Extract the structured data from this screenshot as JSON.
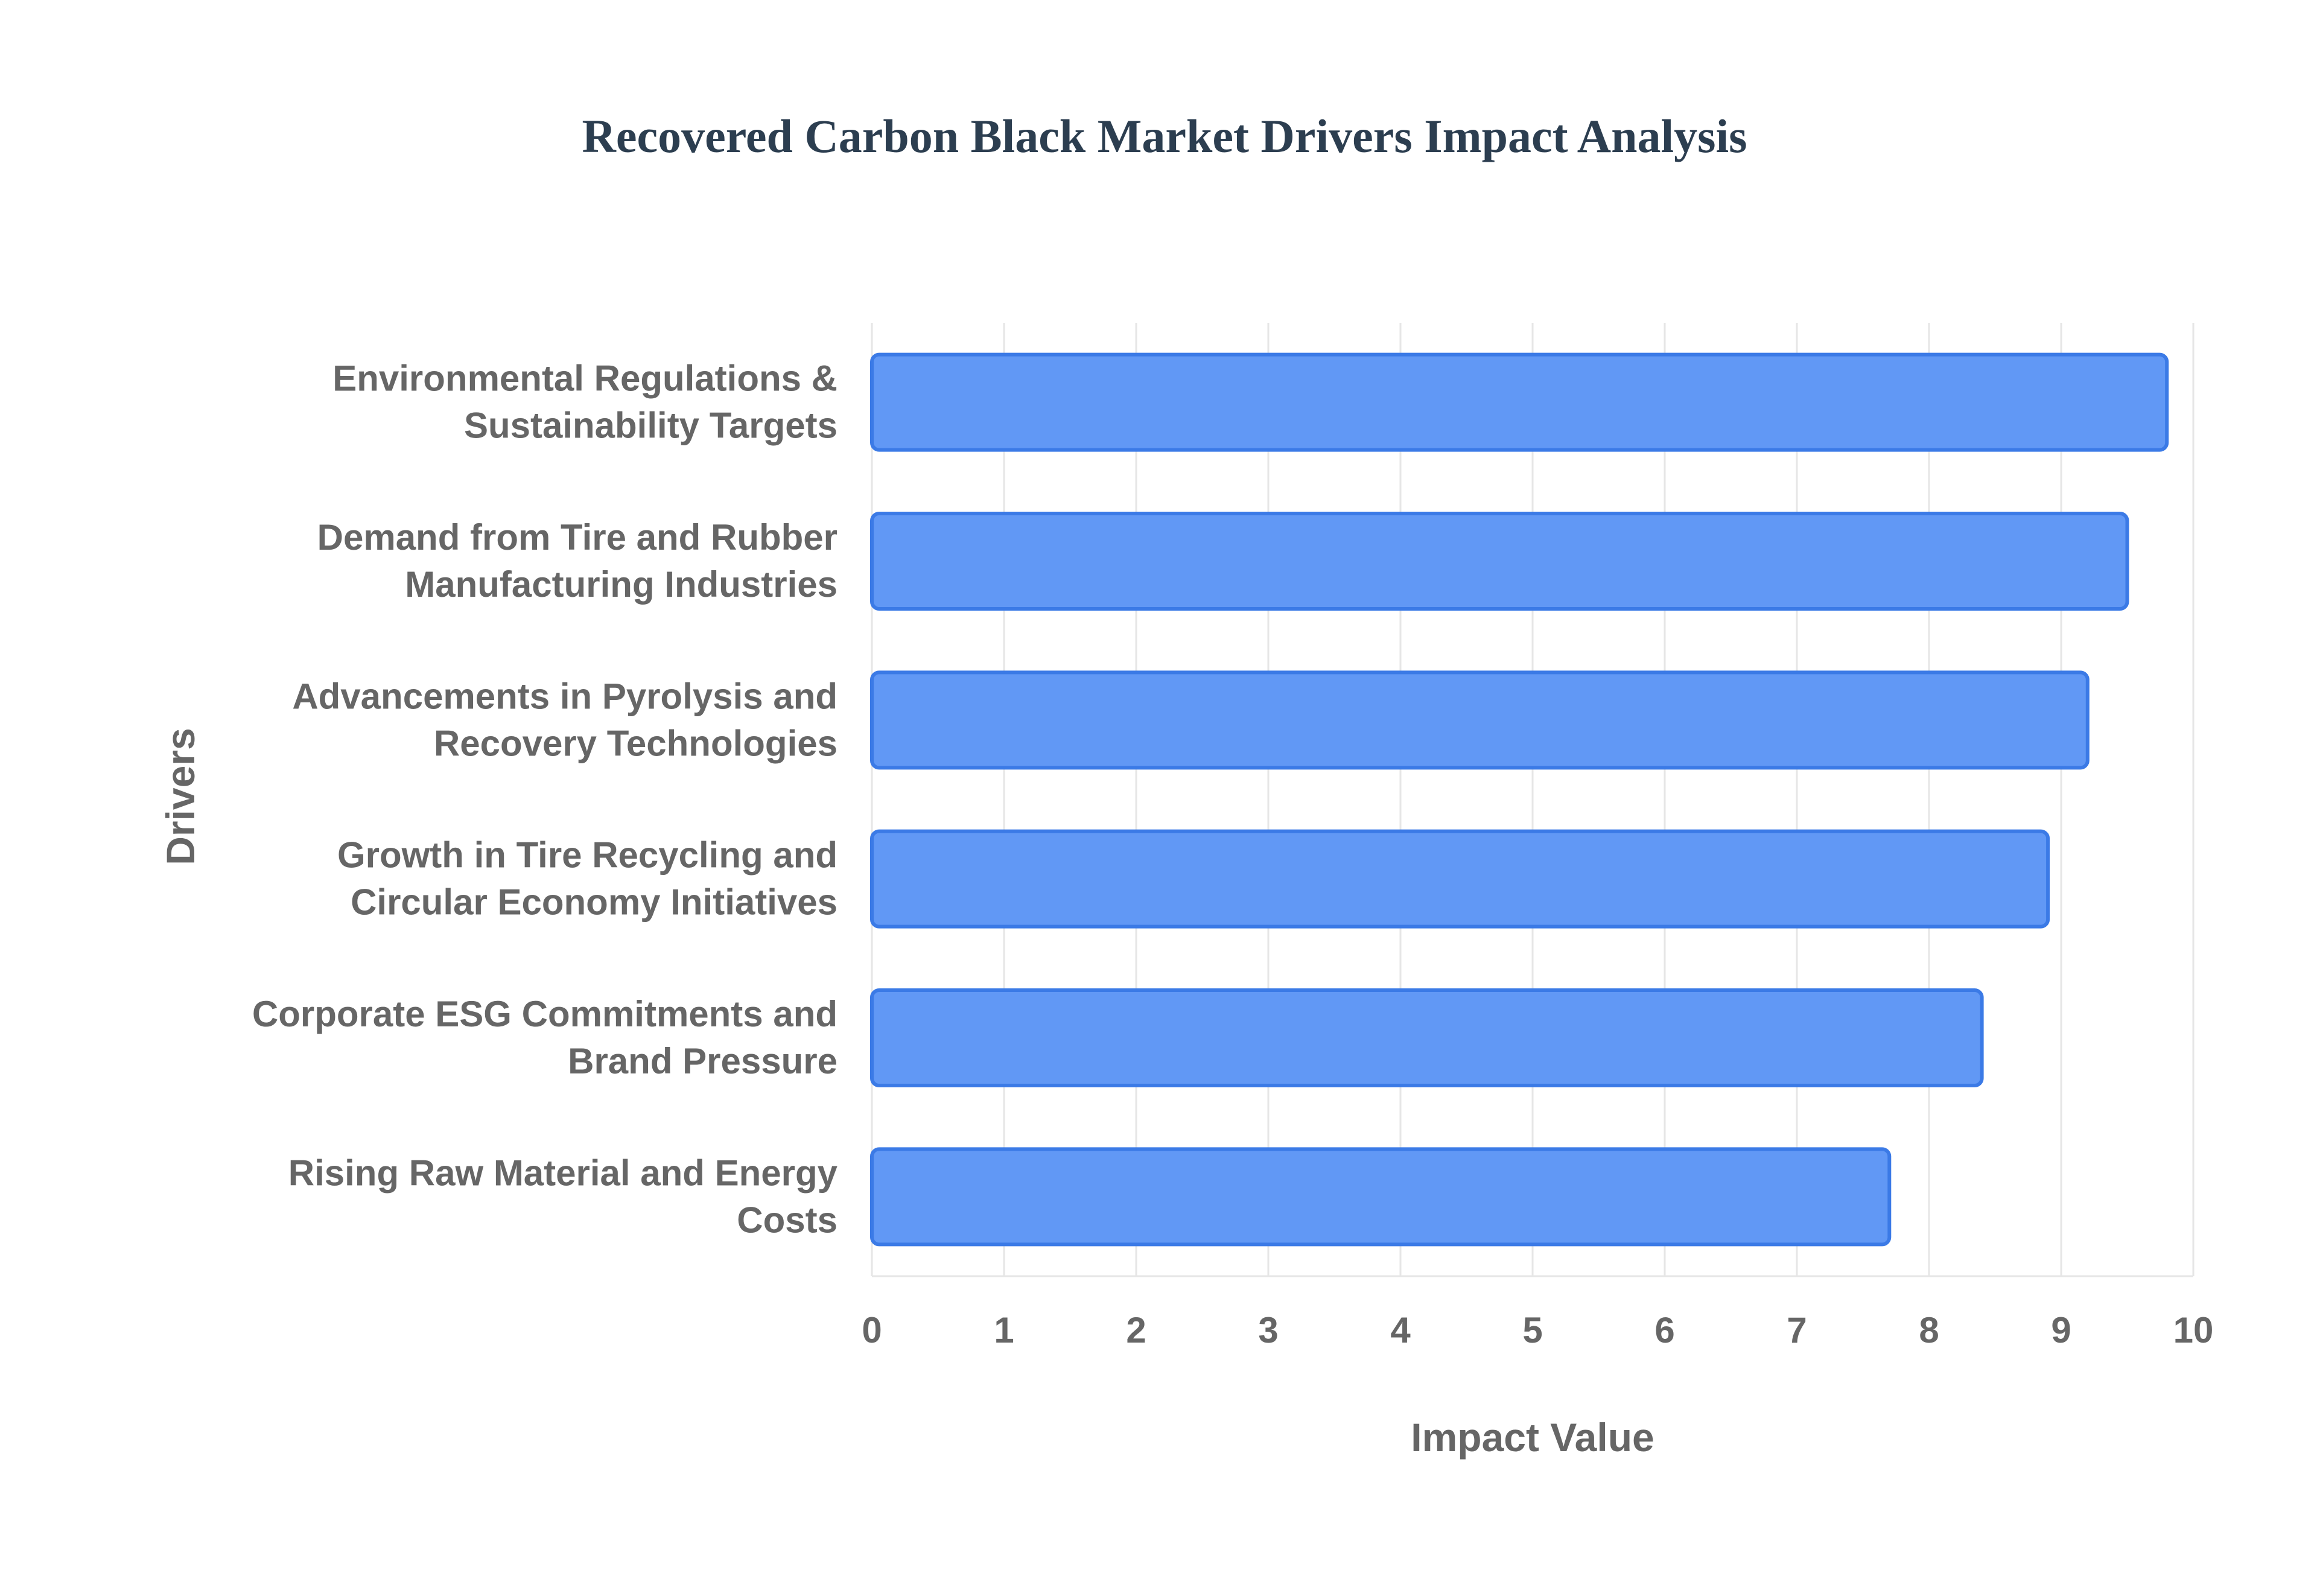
{
  "chart_data": {
    "type": "bar",
    "orientation": "horizontal",
    "title": "Recovered Carbon Black Market Drivers Impact Analysis",
    "xlabel": "Impact Value",
    "ylabel": "Drivers",
    "xlim": [
      0,
      10
    ],
    "xticks": [
      "0",
      "1",
      "2",
      "3",
      "4",
      "5",
      "6",
      "7",
      "8",
      "9",
      "10"
    ],
    "grid": true,
    "legend": "none",
    "categories": [
      [
        "Environmental Regulations &",
        "Sustainability Targets"
      ],
      [
        "Demand from Tire and Rubber",
        "Manufacturing Industries"
      ],
      [
        "Advancements in Pyrolysis and",
        "Recovery Technologies"
      ],
      [
        "Growth in Tire Recycling and",
        "Circular Economy Initiatives"
      ],
      [
        "Corporate ESG Commitments and",
        "Brand Pressure"
      ],
      [
        "Rising Raw Material and Energy",
        "Costs"
      ]
    ],
    "values": [
      9.8,
      9.5,
      9.2,
      8.9,
      8.4,
      7.7
    ],
    "bar_color": "#6198f5",
    "bar_border_color": "#3b7ae6"
  }
}
